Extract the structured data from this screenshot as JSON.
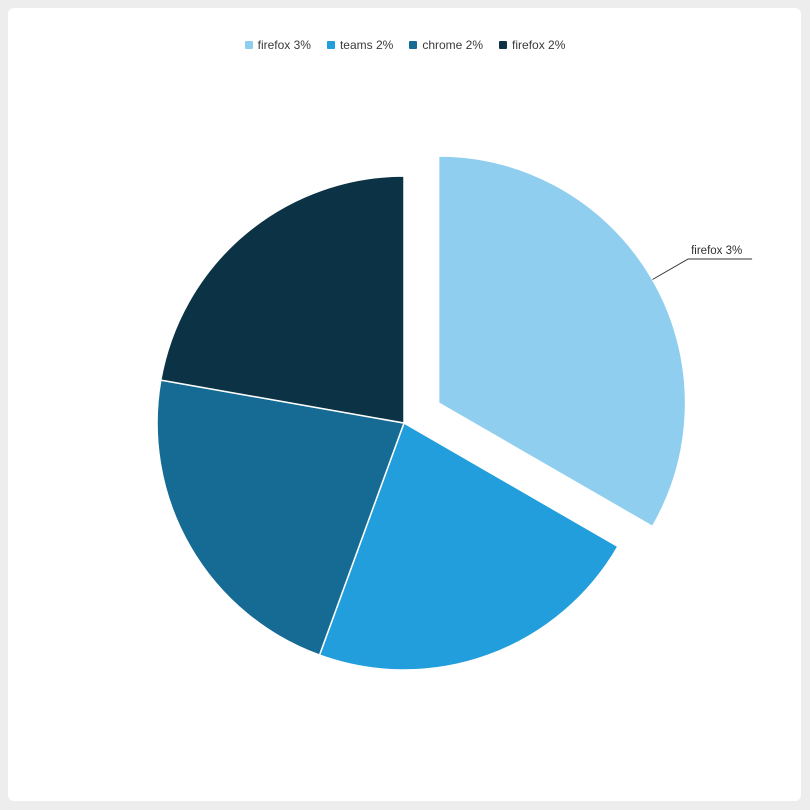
{
  "page": {
    "background_color": "#ededed",
    "card_background_color": "#ffffff"
  },
  "chart_data": {
    "type": "pie",
    "title": "",
    "legend_position": "top",
    "legend": [
      "firefox 3%",
      "teams 2%",
      "chrome 2%",
      "firefox 2%"
    ],
    "slices": [
      {
        "name": "firefox",
        "label": "firefox 3%",
        "percent_label": "3%",
        "value": 3,
        "color": "#90CEF0",
        "exploded": true,
        "callout_label": "firefox 3%"
      },
      {
        "name": "teams",
        "label": "teams 2%",
        "percent_label": "2%",
        "value": 2,
        "color": "#219EDB",
        "exploded": false,
        "callout_label": null
      },
      {
        "name": "chrome",
        "label": "chrome 2%",
        "percent_label": "2%",
        "value": 2,
        "color": "#166B94",
        "exploded": false,
        "callout_label": null
      },
      {
        "name": "firefox",
        "label": "firefox 2%",
        "percent_label": "2%",
        "value": 2,
        "color": "#0C3245",
        "exploded": false,
        "callout_label": null
      }
    ],
    "callout": {
      "text": "firefox 3%",
      "line_color": "#333333"
    },
    "separator_color": "#ffffff"
  }
}
